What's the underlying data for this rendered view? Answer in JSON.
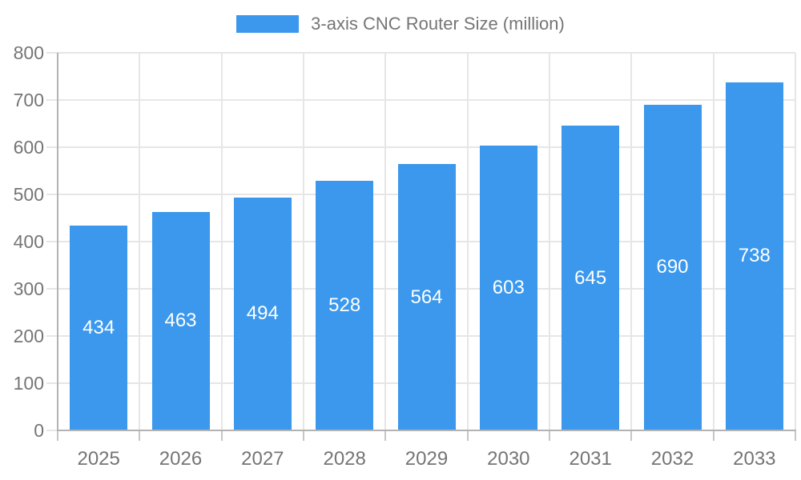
{
  "legend": {
    "label": "3-axis CNC Router Size (million)"
  },
  "chart_data": {
    "type": "bar",
    "title": "3-axis CNC Router Size (million)",
    "categories": [
      "2025",
      "2026",
      "2027",
      "2028",
      "2029",
      "2030",
      "2031",
      "2032",
      "2033"
    ],
    "values": [
      434,
      463,
      494,
      528,
      564,
      603,
      645,
      690,
      738
    ],
    "value_labels": [
      "434",
      "463",
      "494",
      "528",
      "564",
      "603",
      "645",
      "690",
      "738"
    ],
    "xlabel": "",
    "ylabel": "",
    "ylim": [
      0,
      800
    ],
    "yticks": [
      0,
      100,
      200,
      300,
      400,
      500,
      600,
      700,
      800
    ],
    "ytick_labels": [
      "0",
      "100",
      "200",
      "300",
      "400",
      "500",
      "600",
      "700",
      "800"
    ],
    "grid": true,
    "legend_position": "top-center"
  },
  "colors": {
    "bar": "#3b98ec",
    "grid": "#e6e6e6",
    "axis": "#b3b3b3",
    "tick": "#c6c6c6",
    "text": "#757575",
    "value_label": "#ffffff",
    "background": "#ffffff"
  }
}
